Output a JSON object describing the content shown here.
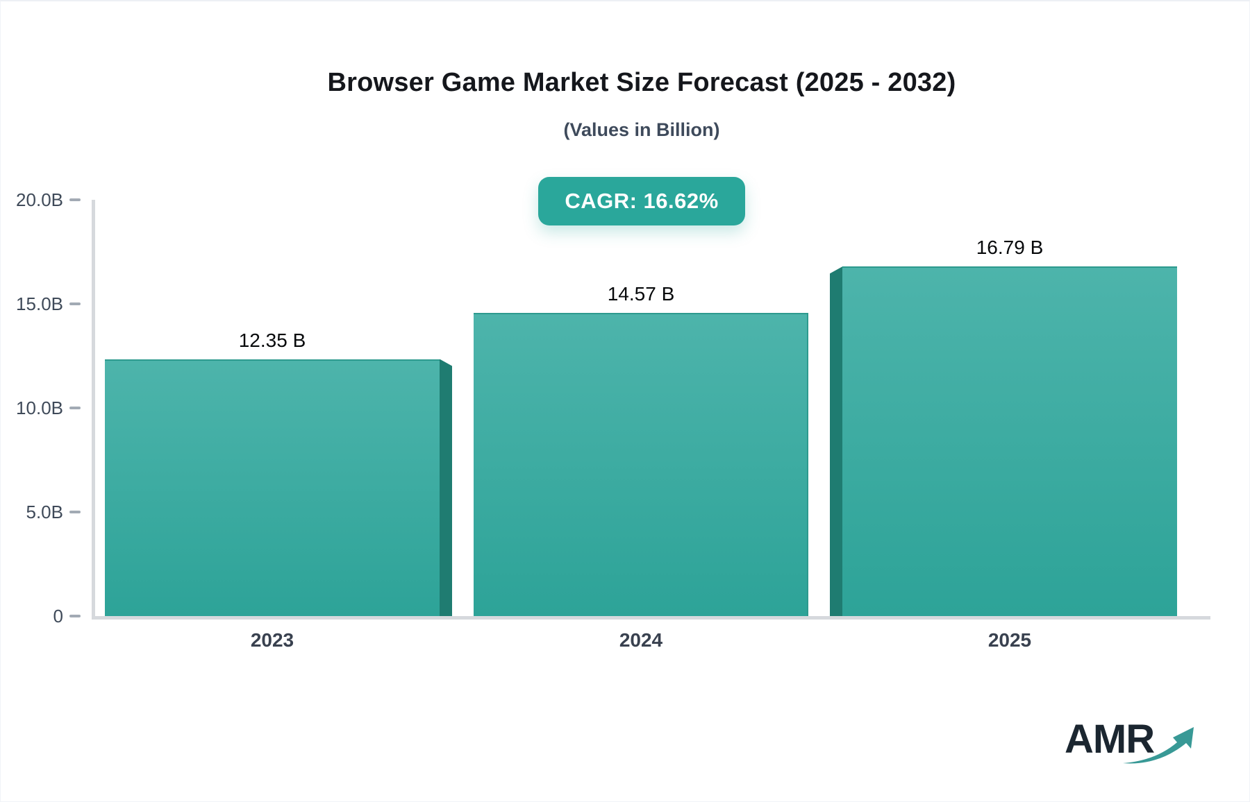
{
  "page": {
    "title": "Browser Game Market Size Forecast (2025 - 2032)",
    "subtitle": "(Values in Billion)",
    "cagr_badge": "CAGR: 16.62%"
  },
  "chart_data": {
    "type": "bar",
    "title": "Browser Game Market Size Forecast (2025 - 2032)",
    "subtitle": "(Values in Billion)",
    "annotation": "CAGR: 16.62%",
    "categories": [
      "2023",
      "2024",
      "2025"
    ],
    "values": [
      12.35,
      14.57,
      16.79
    ],
    "value_labels": [
      "12.35 B",
      "14.57 B",
      "16.79 B"
    ],
    "y_ticks": [
      {
        "value": 20,
        "label": "20.0B"
      },
      {
        "value": 15,
        "label": "15.0B"
      },
      {
        "value": 10,
        "label": "10.0B"
      },
      {
        "value": 5,
        "label": "5.0B"
      },
      {
        "value": 0,
        "label": "0"
      }
    ],
    "ylim": [
      0,
      20
    ],
    "grid": false,
    "legend": false,
    "bar_3d_side": [
      "right",
      "none",
      "left"
    ],
    "colors": {
      "bar_top": "#4db4ab",
      "bar_bottom": "#2da398",
      "bar_edge": "#2d9a8e",
      "bar_side": "#1f7c71",
      "badge_bg": "#2aa79b",
      "axis_line": "#d6d9dd",
      "tick_text": "#3f4a59"
    }
  },
  "logo": {
    "text": "AMR",
    "arrow_icon": "growth-arrow-icon",
    "text_color": "#1b2630",
    "arrow_color": "#389996"
  }
}
